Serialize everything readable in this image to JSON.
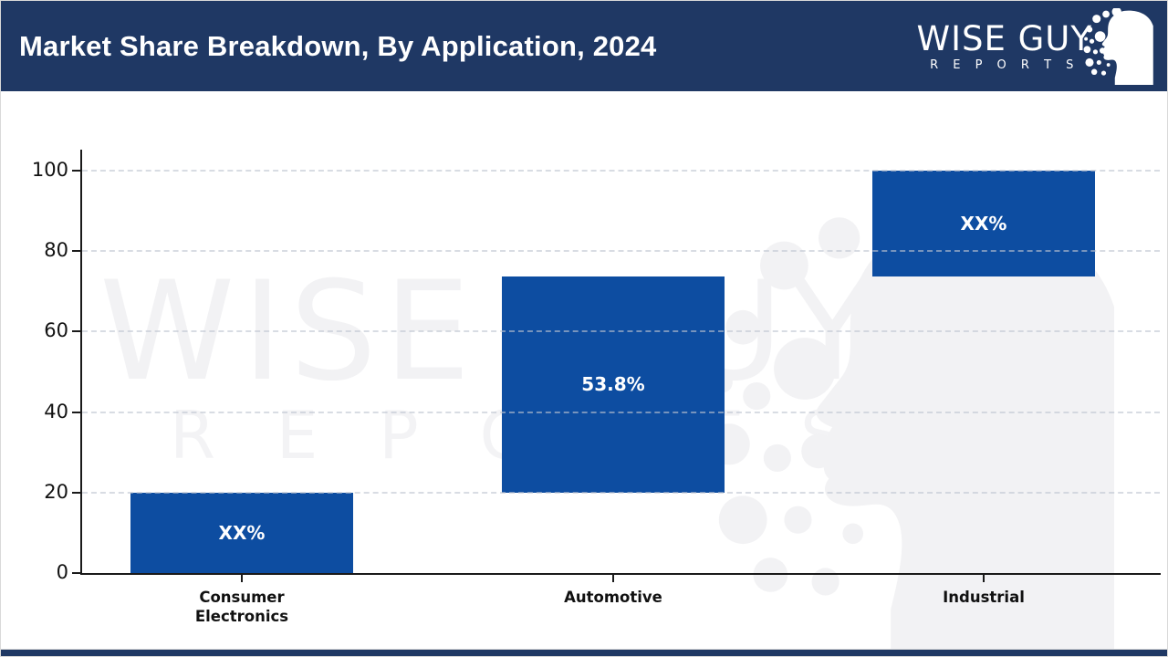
{
  "header": {
    "title": "Market Share Breakdown, By Application, 2024",
    "logo": {
      "name": "WISE GUY",
      "sub": "R E P O R T S"
    }
  },
  "watermark": {
    "big": "WISE GUY",
    "sub": "R E P O R T S"
  },
  "colors": {
    "header_bg": "#1f3864",
    "bar_fill": "#0d4da1",
    "bar_label_text": "#ffffff",
    "axis": "#1a1a1a",
    "grid": "#d9d9d9",
    "watermark": "#f2f2f4"
  },
  "chart_data": {
    "type": "bar",
    "subtype": "waterfall",
    "title": "Market Share Breakdown, By Application, 2024",
    "categories": [
      "Consumer Electronics",
      "Automotive",
      "Industrial"
    ],
    "bars": [
      {
        "category": "Consumer Electronics",
        "category_lines": [
          "Consumer",
          "Electronics"
        ],
        "start": 0,
        "end": 20,
        "value": 20,
        "label": "XX%"
      },
      {
        "category": "Automotive",
        "category_lines": [
          "Automotive"
        ],
        "start": 20,
        "end": 73.8,
        "value": 53.8,
        "label": "53.8%"
      },
      {
        "category": "Industrial",
        "category_lines": [
          "Industrial"
        ],
        "start": 73.8,
        "end": 100,
        "value": 26.2,
        "label": "XX%"
      }
    ],
    "xlabel": "",
    "ylabel": "",
    "ylim": [
      0,
      105
    ],
    "yticks": [
      0,
      20,
      40,
      60,
      80,
      100
    ],
    "grid": true,
    "grid_style": "dashed",
    "legend": false
  }
}
